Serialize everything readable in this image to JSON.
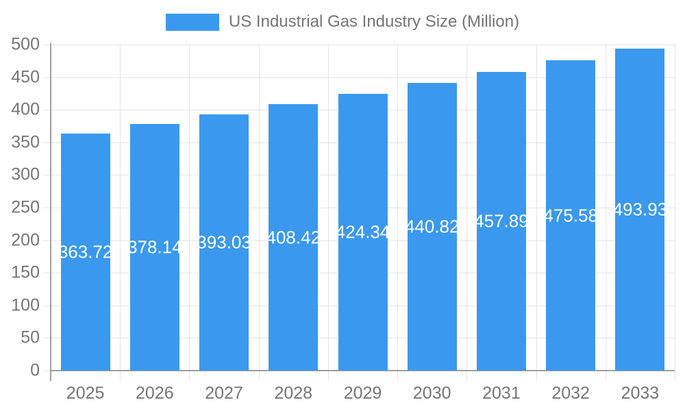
{
  "chart_data": {
    "type": "bar",
    "title": "US Industrial Gas Industry Size (Million)",
    "categories": [
      "2025",
      "2026",
      "2027",
      "2028",
      "2029",
      "2030",
      "2031",
      "2032",
      "2033"
    ],
    "values": [
      363.72,
      378.14,
      393.03,
      408.42,
      424.34,
      440.82,
      457.89,
      475.58,
      493.93
    ],
    "value_labels": [
      "363.72",
      "378.14",
      "393.03",
      "408.42",
      "424.34",
      "440.82",
      "457.89",
      "475.58",
      "493.93"
    ],
    "xlabel": "",
    "ylabel": "",
    "ylim": [
      0,
      500
    ],
    "yticks": [
      0,
      50,
      100,
      150,
      200,
      250,
      300,
      350,
      400,
      450,
      500
    ],
    "grid": true,
    "legend_position": "top",
    "colors": {
      "bar": "#3a99ee",
      "bar_label": "#ffffff",
      "grid_line": "#e5e5e5",
      "axis_line": "#9e9e9e",
      "tick_label": "#757575",
      "legend_text": "#757575",
      "background": "#ffffff"
    }
  }
}
